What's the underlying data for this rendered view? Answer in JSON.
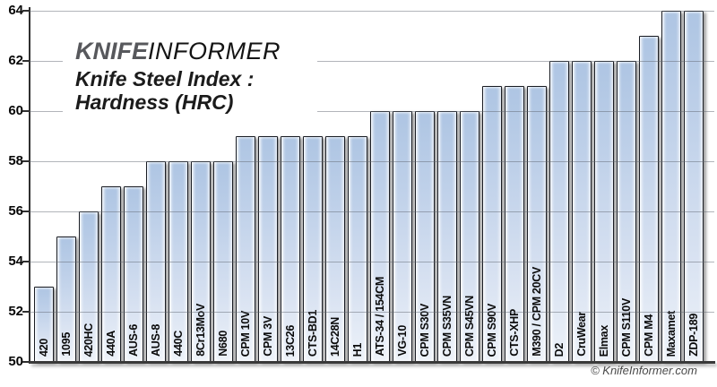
{
  "brand": {
    "logo_primary": "KNIFE",
    "logo_secondary": "INFORMER"
  },
  "title": {
    "line1": "Knife Steel Index :",
    "line2": "Hardness (HRC)"
  },
  "footer": {
    "copyright": "© KnifeInformer.com"
  },
  "colors": {
    "bar_fill_top": "#aec5e3",
    "bar_fill_bottom": "#edf2f9",
    "bar_border": "#1a1d24",
    "gridline": "#8f949e",
    "axis": "#2f2f2f",
    "logo_primary_gray": "#57585c",
    "text_black": "#0a0a0a",
    "copyright_gray": "#4a4a4a"
  },
  "chart_data": {
    "type": "bar",
    "title": "Knife Steel Index : Hardness (HRC)",
    "xlabel": "",
    "ylabel": "",
    "ylim": [
      50,
      64
    ],
    "yticks": [
      50,
      52,
      54,
      56,
      58,
      60,
      62,
      64
    ],
    "grid": true,
    "legend": "none",
    "categories": [
      "420",
      "1095",
      "420HC",
      "440A",
      "AUS-6",
      "AUS-8",
      "440C",
      "8Cr13MoV",
      "N680",
      "CPM 10V",
      "CPM 3V",
      "13C26",
      "CTS-BD1",
      "14C28N",
      "H1",
      "ATS-34 / 154CM",
      "VG-10",
      "CPM S30V",
      "CPM S35VN",
      "CPM S45VN",
      "CPM S90V",
      "CTS-XHP",
      "M390 / CPM 20CV",
      "D2",
      "CruWear",
      "Elmax",
      "CPM S110V",
      "CPM M4",
      "Maxamet",
      "ZDP-189"
    ],
    "values": [
      53,
      55,
      56,
      57,
      57,
      58,
      58,
      58,
      58,
      59,
      59,
      59,
      59,
      59,
      59,
      60,
      60,
      60,
      60,
      60,
      61,
      61,
      61,
      62,
      62,
      62,
      62,
      63,
      64,
      64
    ]
  }
}
